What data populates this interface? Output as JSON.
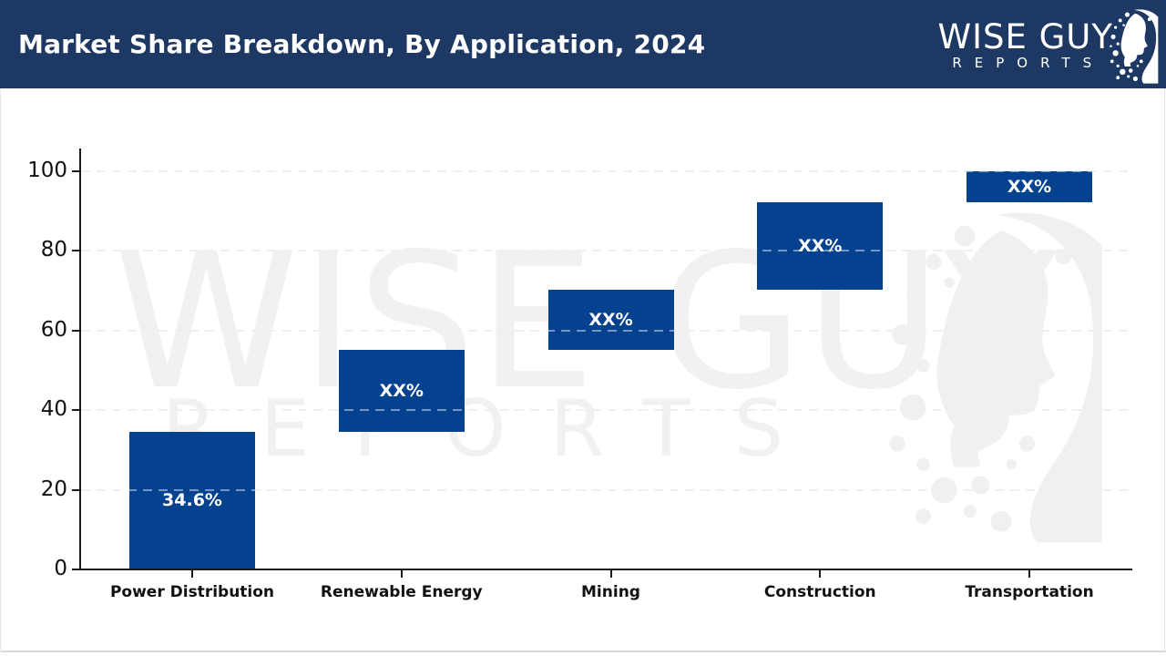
{
  "header": {
    "title": "Market Share Breakdown, By Application, 2024",
    "bg_color": "#1e3864",
    "logo": {
      "line1": "WISE GUY",
      "line2": "REPORTS"
    }
  },
  "watermark": {
    "line1": "WISE GUY",
    "line2": "REPORTS",
    "color": "#f1f1f1"
  },
  "chart_data": {
    "type": "bar",
    "variant": "waterfall",
    "title": "Market Share Breakdown, By Application, 2024",
    "categories": [
      "Power Distribution",
      "Renewable Energy",
      "Mining",
      "Construction",
      "Transportation"
    ],
    "segments": [
      {
        "category": "Power Distribution",
        "start": 0,
        "end": 34.6,
        "label": "34.6%"
      },
      {
        "category": "Renewable Energy",
        "start": 34.6,
        "end": 55.1,
        "label": "XX%"
      },
      {
        "category": "Mining",
        "start": 55.1,
        "end": 70.1,
        "label": "XX%"
      },
      {
        "category": "Construction",
        "start": 70.1,
        "end": 92.2,
        "label": "XX%"
      },
      {
        "category": "Transportation",
        "start": 92.2,
        "end": 100,
        "label": "XX%"
      }
    ],
    "y_ticks": [
      0,
      20,
      40,
      60,
      80,
      100
    ],
    "ylim": [
      0,
      105.5
    ],
    "xlabel": "",
    "ylabel": "",
    "grid": true,
    "grid_style": "dashed",
    "legend": false,
    "bar_color": "#04418f",
    "bar_label_color": "#ffffff",
    "axis_color": "#1a1a1a",
    "grid_color": "#e2e2e2"
  }
}
